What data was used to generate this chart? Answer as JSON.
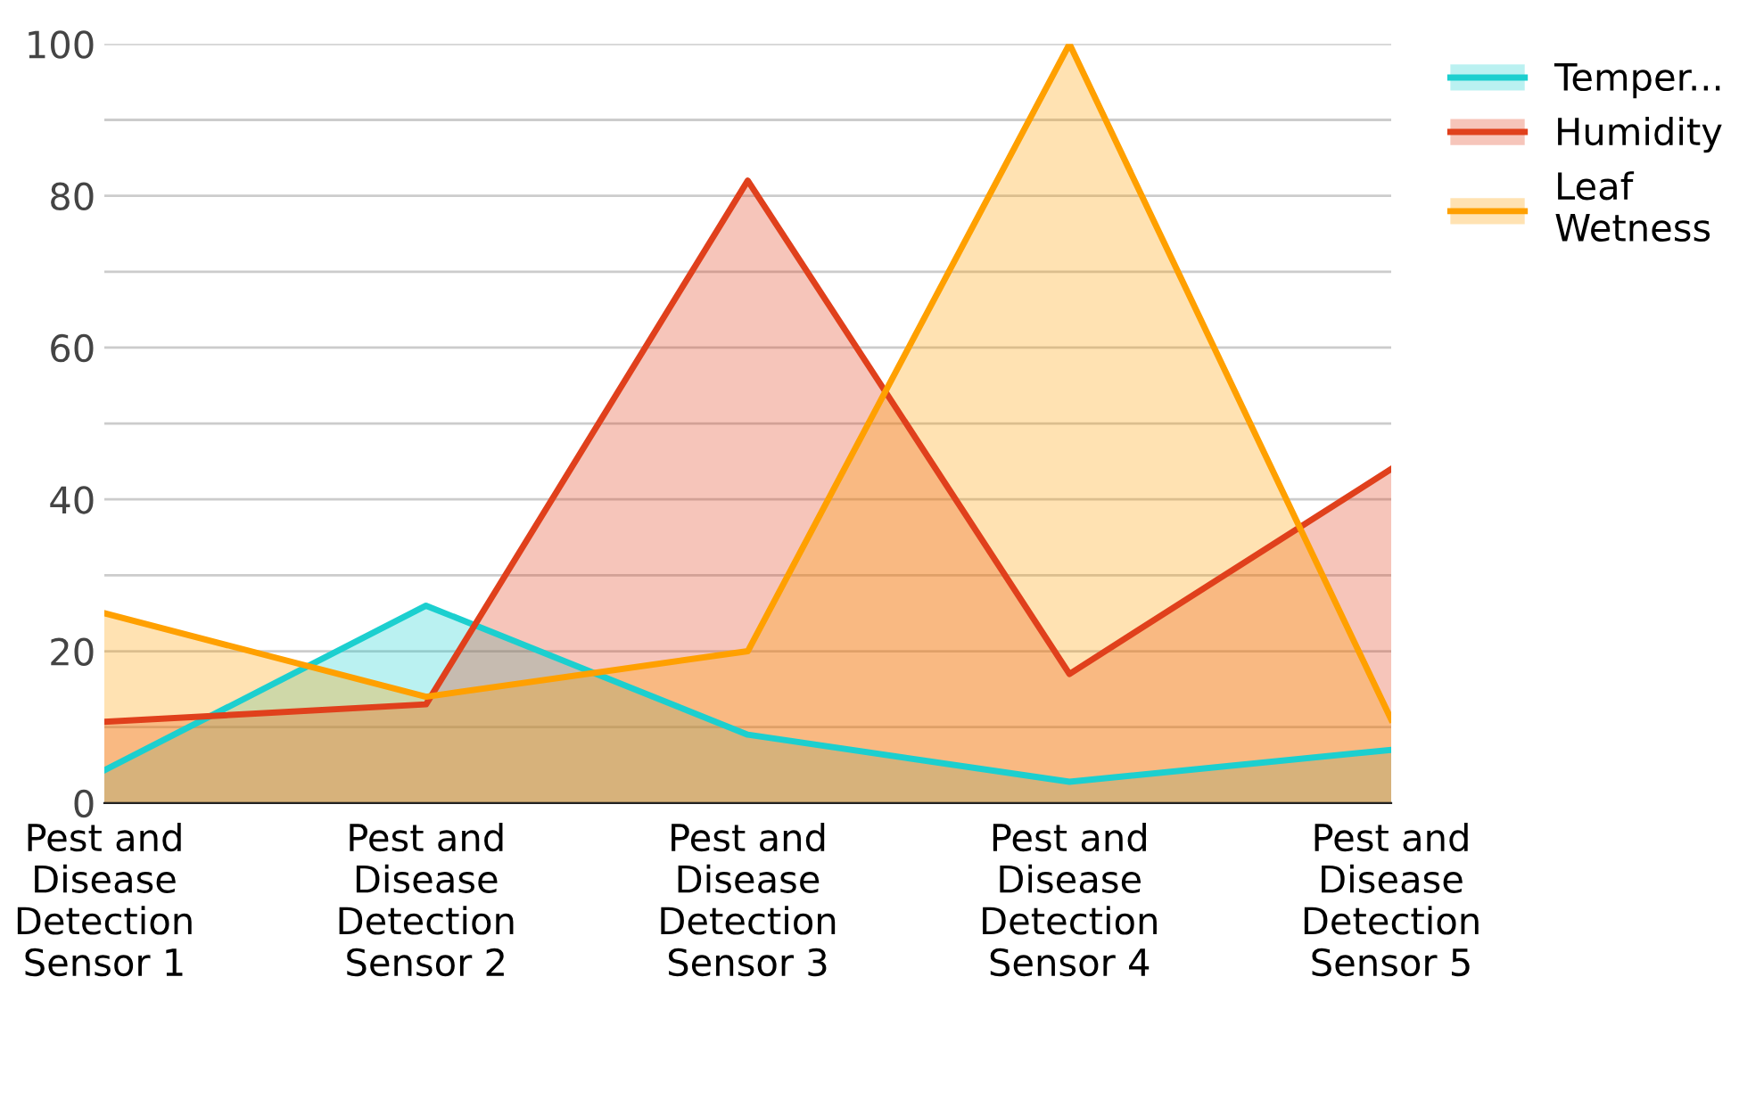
{
  "chart_data": {
    "type": "area",
    "categories": [
      "Pest and\nDisease\nDetection\nSensor 1",
      "Pest and\nDisease\nDetection\nSensor 2",
      "Pest and\nDisease\nDetection\nSensor 3",
      "Pest and\nDisease\nDetection\nSensor 4",
      "Pest and\nDisease\nDetection\nSensor 5"
    ],
    "series": [
      {
        "name": "Temper...",
        "color": "#1ccfcf",
        "values": [
          4.3,
          26,
          9,
          2.8,
          7
        ]
      },
      {
        "name": "Humidity",
        "color": "#e0401c",
        "values": [
          10.7,
          13,
          82,
          17,
          44
        ]
      },
      {
        "name": "Leaf\nWetness",
        "color": "#ffa000",
        "values": [
          25,
          14,
          20,
          100,
          11
        ]
      }
    ],
    "ylim": [
      0,
      100
    ],
    "yticks": [
      0,
      {
        "value": 10,
        "label": null
      },
      20,
      {
        "value": 30,
        "label": null
      },
      40,
      {
        "value": 50,
        "label": null
      },
      60,
      {
        "value": 70,
        "label": null
      },
      80,
      {
        "value": 90,
        "label": null
      },
      100
    ],
    "grid": "y",
    "legend": "top right",
    "line_style": "solid",
    "marker": "none"
  }
}
